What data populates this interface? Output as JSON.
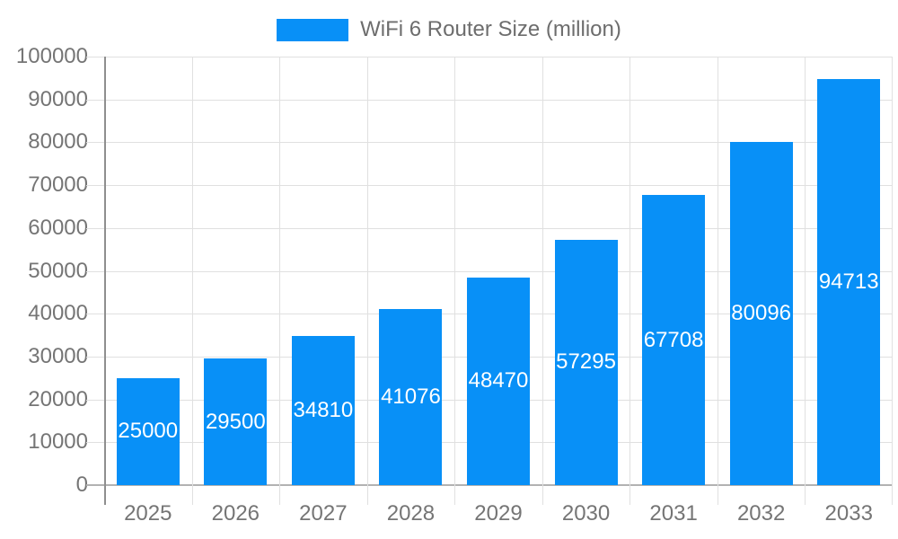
{
  "chart_data": {
    "type": "bar",
    "title": "WiFi 6 Router Size (million)",
    "legend_position": "top-center",
    "categories": [
      "2025",
      "2026",
      "2027",
      "2028",
      "2029",
      "2030",
      "2031",
      "2032",
      "2033"
    ],
    "series": [
      {
        "name": "WiFi 6 Router Size (million)",
        "values": [
          25000,
          29500,
          34810,
          41076,
          48470,
          57295,
          67708,
          80096,
          94713
        ]
      }
    ],
    "bar_value_labels": [
      "25000",
      "29500",
      "34810",
      "41076",
      "48470",
      "57295",
      "67708",
      "80096",
      "94713"
    ],
    "xlabel": "",
    "ylabel": "",
    "ylim": [
      0,
      100000
    ],
    "yticks": [
      0,
      10000,
      20000,
      30000,
      40000,
      50000,
      60000,
      70000,
      80000,
      90000,
      100000
    ],
    "ytick_labels": [
      "0",
      "10000",
      "20000",
      "30000",
      "40000",
      "50000",
      "60000",
      "70000",
      "80000",
      "90000",
      "100000"
    ],
    "grid": true,
    "value_labels_inside_bars": true,
    "colors": {
      "bar": "#0890f7",
      "bar_value_text": "#ffffff",
      "axis_text": "#757575",
      "legend_text": "#6d6d6d",
      "gridline": "#e0e0e0",
      "x_axis_line": "#b2b2b2",
      "y_axis_line": "#8f8f8f",
      "background": "#ffffff"
    }
  }
}
